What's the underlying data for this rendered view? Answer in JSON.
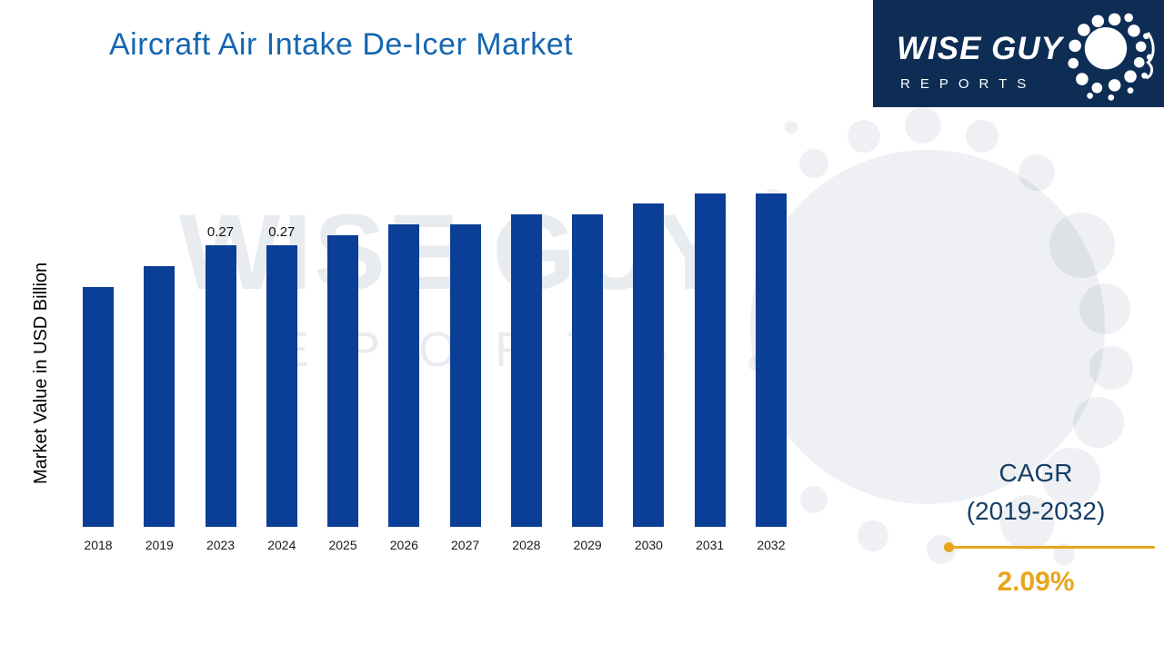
{
  "title": "Aircraft Air Intake De-Icer Market",
  "logo": {
    "line1": "WISE GUY",
    "line2": "REPORTS"
  },
  "watermark": {
    "line1": "WISE GUY",
    "line2": "REPORTS"
  },
  "y_axis_label": "Market Value in USD Billion",
  "cagr": {
    "label": "CAGR",
    "range": "(2019-2032)",
    "value": "2.09%"
  },
  "colors": {
    "bar": "#0b3e96",
    "title_blue": "#1566b0",
    "logo_navy": "#0d2d55",
    "accent_gold": "#e8a51d"
  },
  "chart_data": {
    "type": "bar",
    "title": "Aircraft Air Intake De-Icer Market",
    "xlabel": "",
    "ylabel": "Market Value in USD Billion",
    "ylim": [
      0,
      0.34
    ],
    "grid": false,
    "legend": false,
    "bar_color": "#0b3e96",
    "categories": [
      "2018",
      "2019",
      "2023",
      "2024",
      "2025",
      "2026",
      "2027",
      "2028",
      "2029",
      "2030",
      "2031",
      "2032"
    ],
    "values": [
      0.23,
      0.25,
      0.27,
      0.27,
      0.28,
      0.29,
      0.29,
      0.3,
      0.3,
      0.31,
      0.32,
      0.32
    ],
    "bar_labels": [
      "",
      "",
      "0.27",
      "0.27",
      "",
      "",
      "",
      "",
      "",
      "",
      "",
      ""
    ]
  }
}
